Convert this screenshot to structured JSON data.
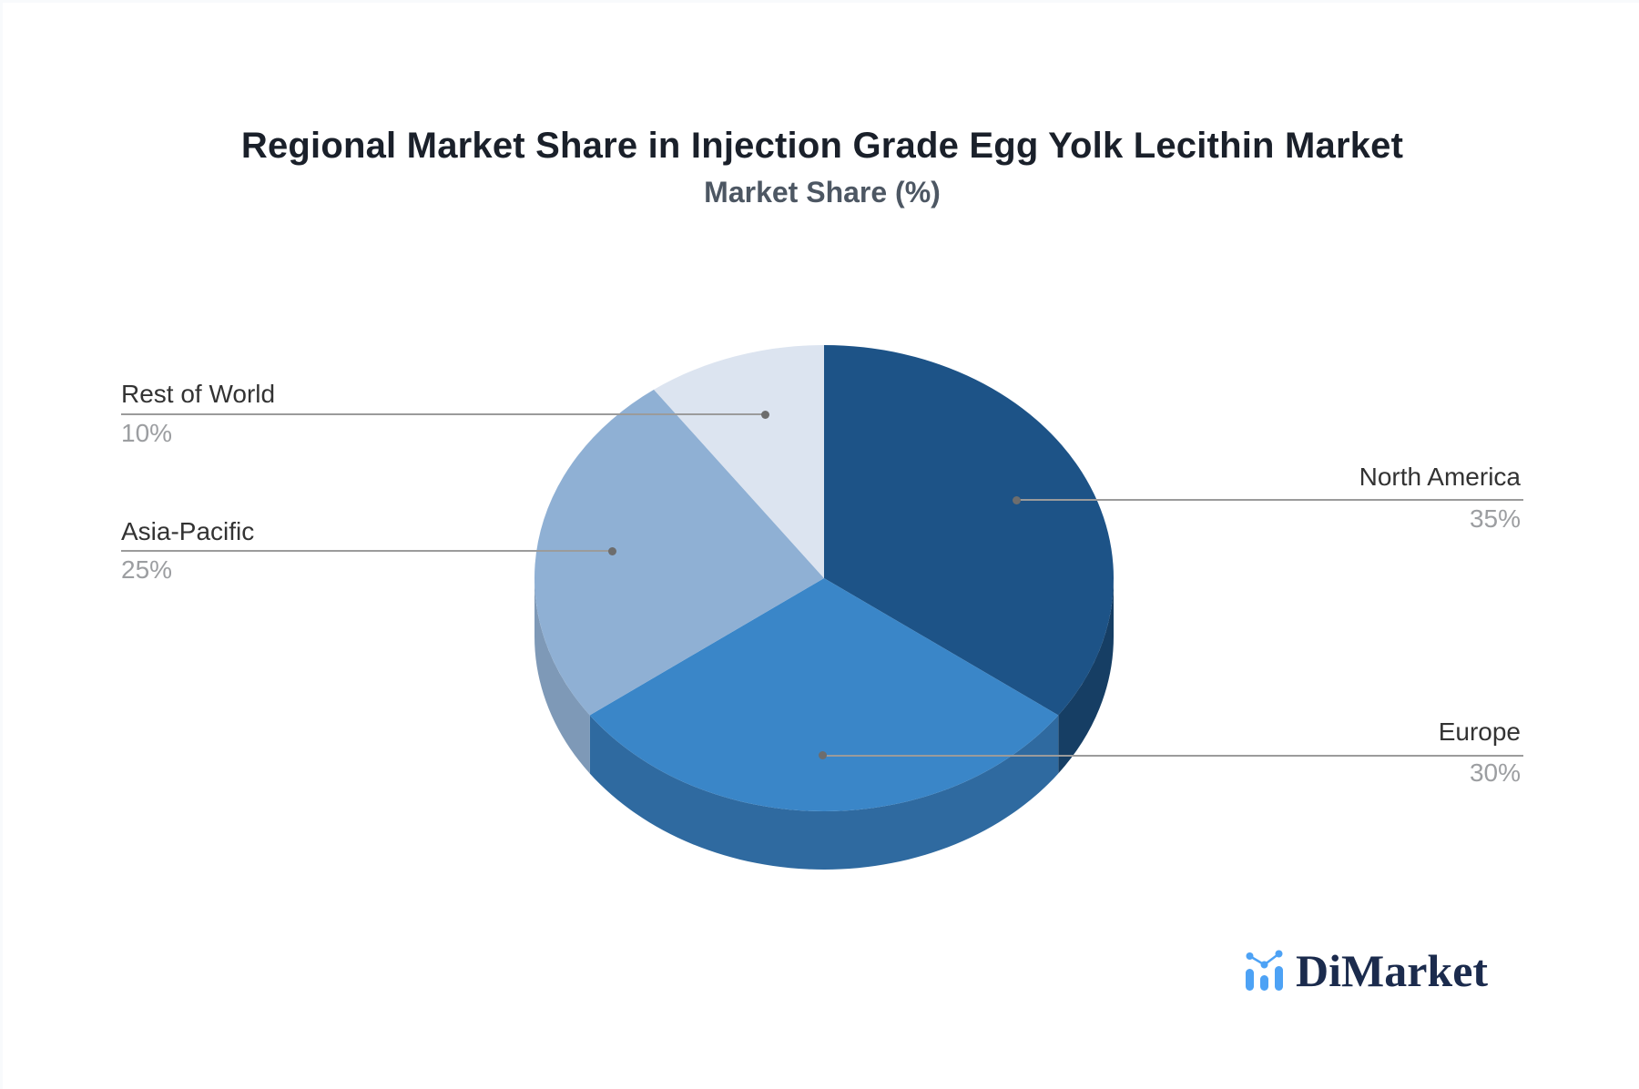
{
  "header": {
    "title": "Regional Market Share in Injection Grade Egg Yolk Lecithin Market",
    "subtitle": "Market Share (%)"
  },
  "chart_data": {
    "type": "pie",
    "style": "3d",
    "title": "Regional Market Share in Injection Grade Egg Yolk Lecithin Market",
    "subtitle": "Market Share (%)",
    "unit": "%",
    "start_angle": "12-oclock",
    "direction": "clockwise",
    "legend": "none",
    "labeling": "outside-leader-lines",
    "slices": [
      {
        "label": "North America",
        "value": 35,
        "display": "35%",
        "color": "#1d5387",
        "side_color": "#163e64"
      },
      {
        "label": "Europe",
        "value": 30,
        "display": "30%",
        "color": "#3a86c8",
        "side_color": "#2f6aa0"
      },
      {
        "label": "Asia-Pacific",
        "value": 25,
        "display": "25%",
        "color": "#8fb0d4",
        "side_color": "#7e99b7"
      },
      {
        "label": "Rest of World",
        "value": 10,
        "display": "10%",
        "color": "#dce4f0",
        "side_color": "#b9c6d8"
      }
    ]
  },
  "branding": {
    "name": "DiMarket",
    "icon": "bar-line-chart-icon",
    "accent_color": "#4da2f5",
    "text_color": "#1b2b4d"
  },
  "colors": {
    "title_text": "#1a202a",
    "subtitle_text": "#4d5763",
    "label_text": "#333333",
    "value_text": "#9c9ea1",
    "leader_line": "#9b9b9b",
    "leader_dot": "#6d6d6d",
    "background": "#ffffff"
  }
}
